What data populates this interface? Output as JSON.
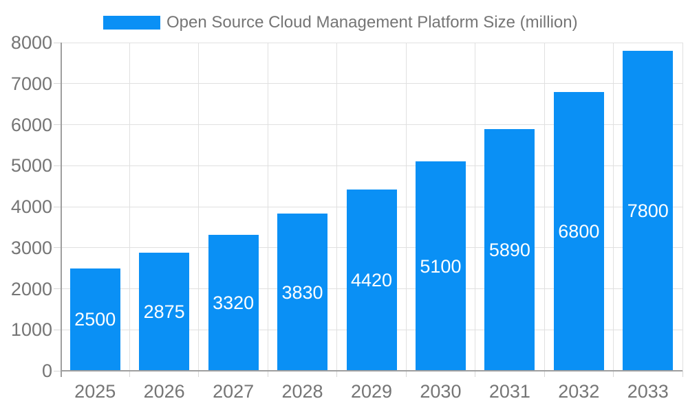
{
  "legend": {
    "label": "Open Source Cloud Management Platform Size (million)"
  },
  "chart_data": {
    "type": "bar",
    "title": "Open Source Cloud Management Platform Size (million)",
    "categories": [
      "2025",
      "2026",
      "2027",
      "2028",
      "2029",
      "2030",
      "2031",
      "2032",
      "2033"
    ],
    "values": [
      2500,
      2875,
      3320,
      3830,
      4420,
      5100,
      5890,
      6800,
      7800
    ],
    "xlabel": "",
    "ylabel": "",
    "ylim": [
      0,
      8000
    ],
    "ytick_step": 1000,
    "grid": true,
    "legend_position": "top-center",
    "colors": {
      "bar": "#0a90f5",
      "value_label": "#ffffff",
      "axis_text": "#757575",
      "axis_line": "#9e9e9e",
      "gridline": "#e0e0e0",
      "tick": "#d6d6d6"
    }
  }
}
